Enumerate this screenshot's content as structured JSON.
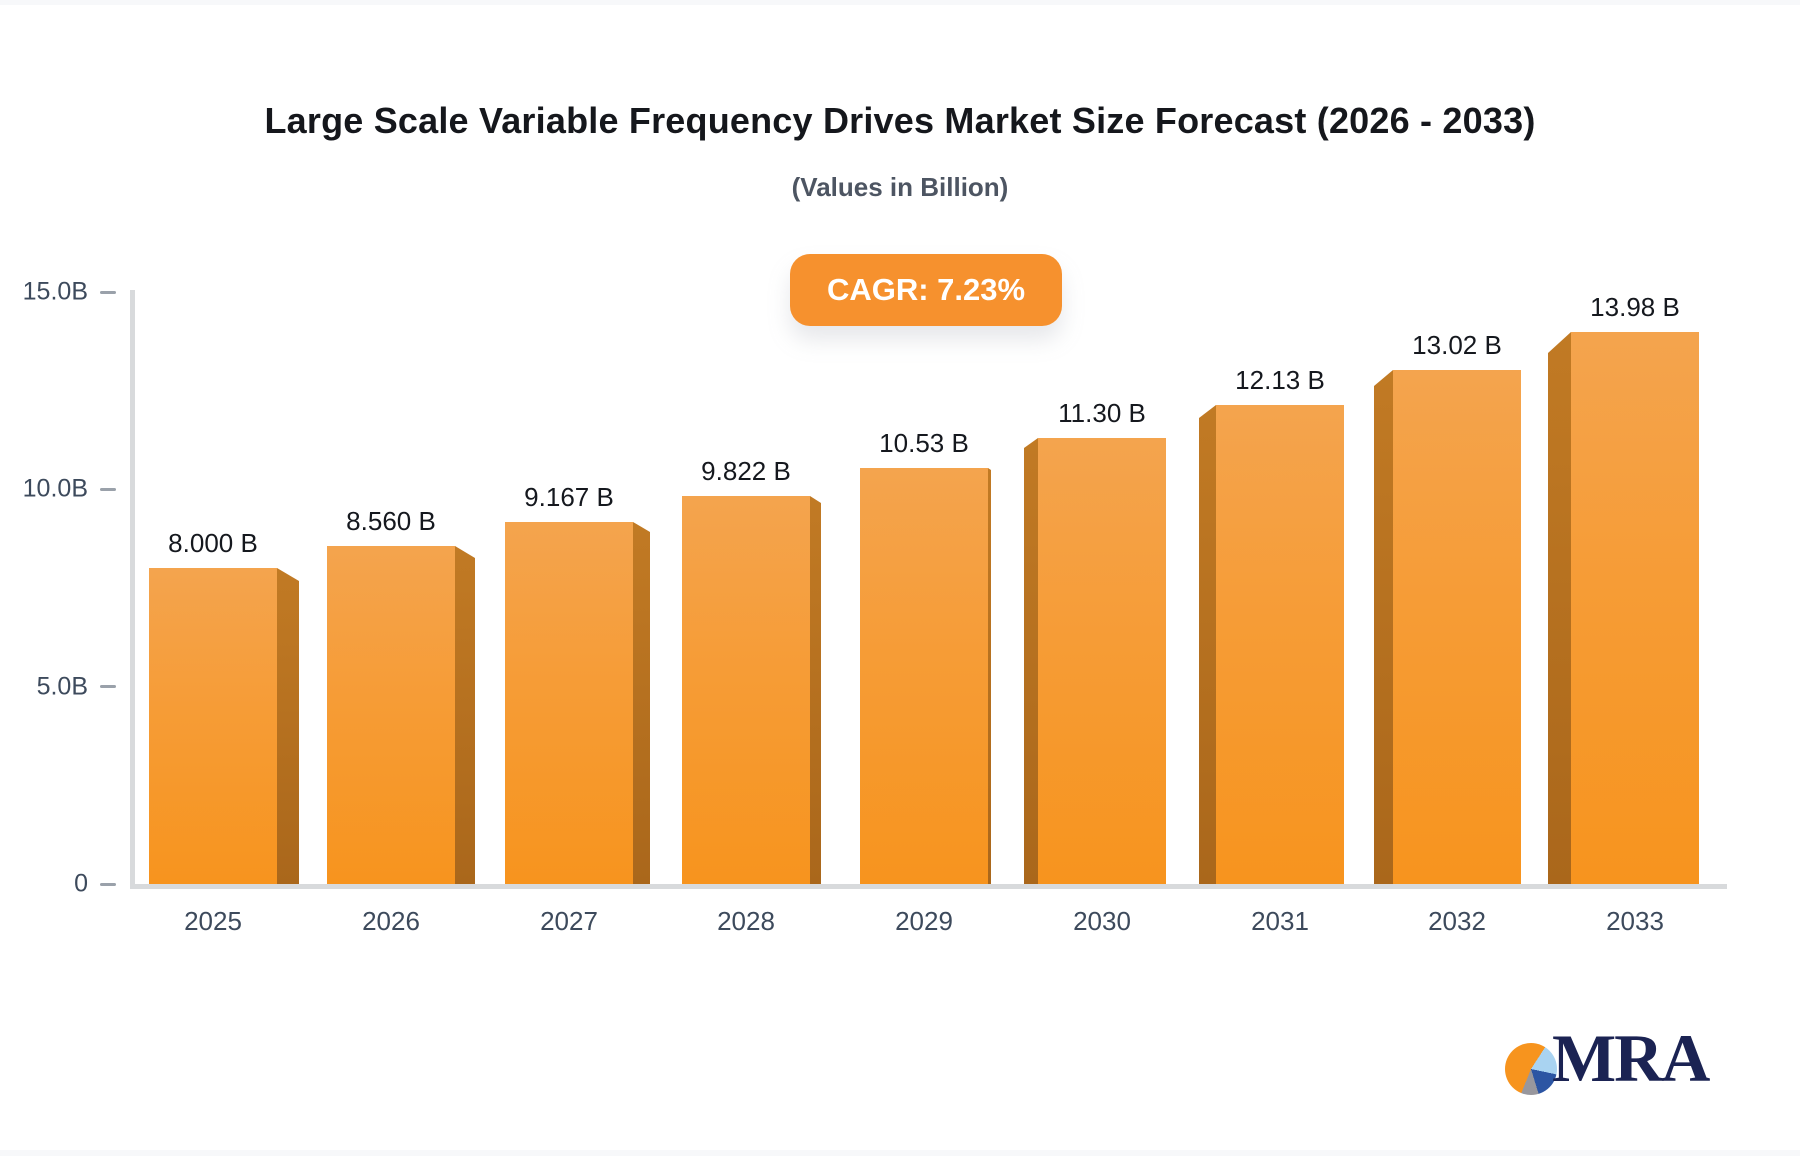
{
  "header": {
    "title": "Large Scale Variable Frequency Drives Market Size Forecast (2026 - 2033)",
    "subtitle": "(Values in Billion)"
  },
  "badge": {
    "label": "CAGR: 7.23%",
    "bg_color": "#F6912E",
    "text_color": "#FFFFFF"
  },
  "chart_data": {
    "type": "bar",
    "title": "Large Scale Variable Frequency Drives Market Size Forecast (2026 - 2033)",
    "subtitle": "(Values in Billion)",
    "annotation": "CAGR: 7.23%",
    "categories": [
      "2025",
      "2026",
      "2027",
      "2028",
      "2029",
      "2030",
      "2031",
      "2032",
      "2033"
    ],
    "values": [
      8.0,
      8.56,
      9.167,
      9.822,
      10.53,
      11.3,
      12.13,
      13.02,
      13.98
    ],
    "value_labels": [
      "8.000 B",
      "8.560 B",
      "9.167 B",
      "9.822 B",
      "10.53 B",
      "11.30 B",
      "12.13 B",
      "13.02 B",
      "13.98 B"
    ],
    "xlabel": "",
    "ylabel": "",
    "ylim": [
      0,
      15
    ],
    "y_ticks": [
      {
        "value": 15,
        "label": "15.0B"
      },
      {
        "value": 10,
        "label": "10.0B"
      },
      {
        "value": 5,
        "label": "5.0B"
      },
      {
        "value": 0,
        "label": "0"
      }
    ],
    "grid": false,
    "legend": false,
    "bar_color": "#F7941E",
    "bar_color_light": "#F4A44E",
    "bar_side_color": "#B8721F"
  },
  "logo": {
    "text": "MRA",
    "pie_colors": {
      "orange": "#F7941E",
      "light_blue": "#A9D3F1",
      "dark_blue": "#2C55A3",
      "gray": "#98979D"
    },
    "text_color": "#1B2353"
  }
}
